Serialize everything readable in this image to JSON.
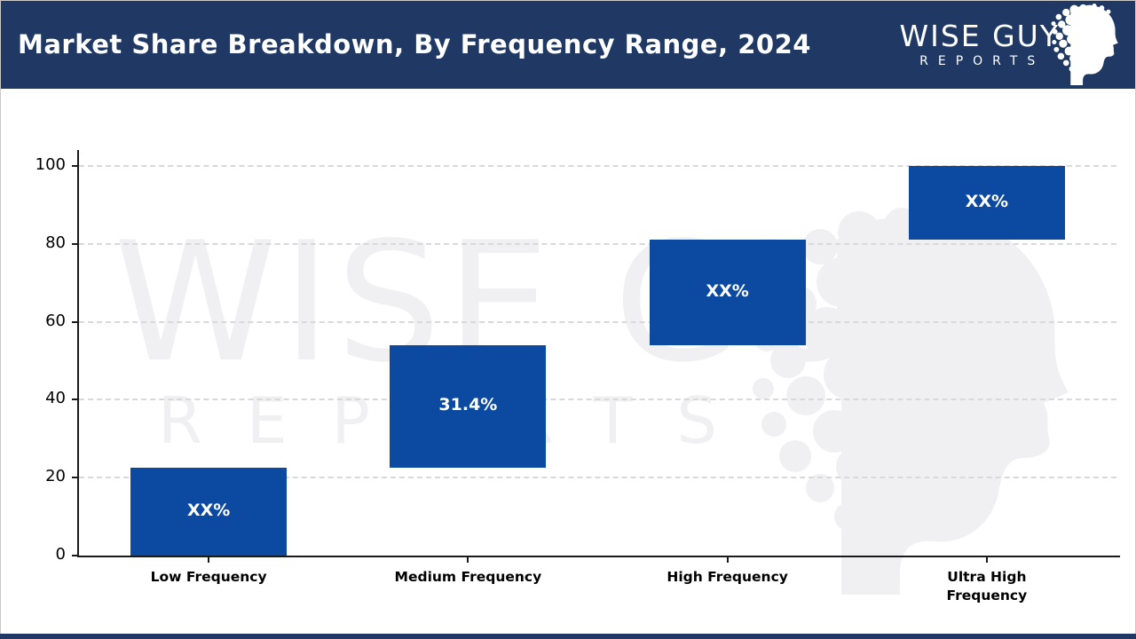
{
  "header": {
    "title": "Market Share Breakdown, By Frequency Range, 2024",
    "background_color": "#1F3864"
  },
  "logo": {
    "line1": "WISE GUY",
    "line2": "REPORTS"
  },
  "watermark": {
    "line1": "WISE GUY",
    "line2": "REPORTS"
  },
  "chart_data": {
    "type": "bar",
    "subtype": "waterfall",
    "title": "Market Share Breakdown, By Frequency Range, 2024",
    "categories": [
      "Low Frequency",
      "Medium Frequency",
      "High Frequency",
      "Ultra High\nFrequency"
    ],
    "series": [
      {
        "name": "Market share (%)",
        "segments": [
          {
            "category": "Low Frequency",
            "start": 0,
            "end": 22.5,
            "label": "XX%"
          },
          {
            "category": "Medium Frequency",
            "start": 22.5,
            "end": 53.9,
            "label": "31.4%"
          },
          {
            "category": "High Frequency",
            "start": 53.9,
            "end": 81.0,
            "label": "XX%"
          },
          {
            "category": "Ultra High Frequency",
            "start": 81.0,
            "end": 100.0,
            "label": "XX%"
          }
        ]
      }
    ],
    "xlabel": "",
    "ylabel": "",
    "ylim": [
      0,
      100
    ],
    "yticks": [
      0,
      20,
      40,
      60,
      80,
      100
    ],
    "grid": "horizontal-dashed",
    "legend": "none",
    "bar_color": "#0C49A0",
    "bar_label_color": "#FFFFFF"
  }
}
